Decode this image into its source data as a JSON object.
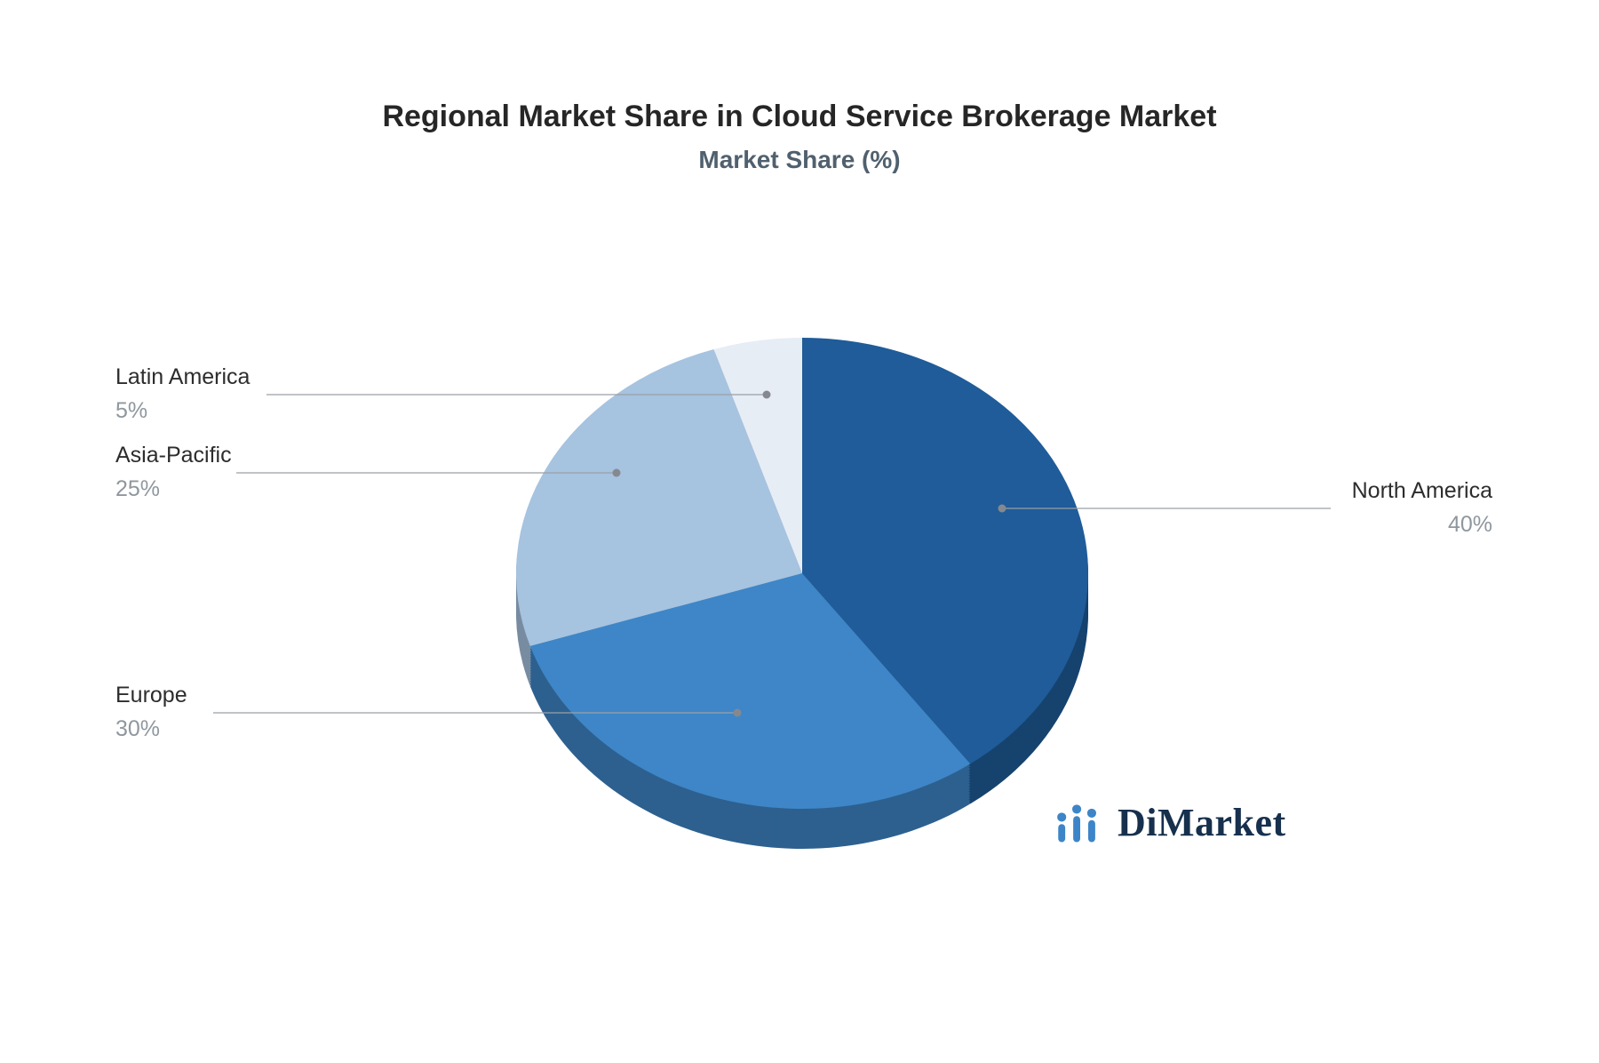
{
  "header": {
    "title": "Regional Market Share in Cloud Service Brokerage Market",
    "subtitle": "Market Share (%)"
  },
  "chart_data": {
    "type": "pie",
    "style": "3d",
    "title": "Regional Market Share in Cloud Service Brokerage Market",
    "value_axis_label": "Market Share (%)",
    "unit": "%",
    "start_angle_deg": 0,
    "direction": "clockwise",
    "slices": [
      {
        "label": "North America",
        "value": 40,
        "display_value": "40%",
        "color": "#1f5c99"
      },
      {
        "label": "Europe",
        "value": 30,
        "display_value": "30%",
        "color": "#3e86c7"
      },
      {
        "label": "Asia-Pacific",
        "value": 25,
        "display_value": "25%",
        "color": "#a6c3e0"
      },
      {
        "label": "Latin America",
        "value": 5,
        "display_value": "5%",
        "color": "#e7edf5"
      }
    ],
    "depth_shade_factor": 0.72,
    "legend_position": "callouts-with-leader-lines"
  },
  "branding": {
    "logo_text": "DiMarket",
    "logo_icon": "bar-chart-icon",
    "text_color": "#16304d",
    "icon_color": "#3c85c8"
  },
  "colors": {
    "background": "#ffffff",
    "title": "#262626",
    "subtitle": "#50606e",
    "label": "#2d2d2d",
    "value": "#8f979e",
    "leader_line": "#9aa0a6",
    "leader_dot": "#85898f"
  }
}
